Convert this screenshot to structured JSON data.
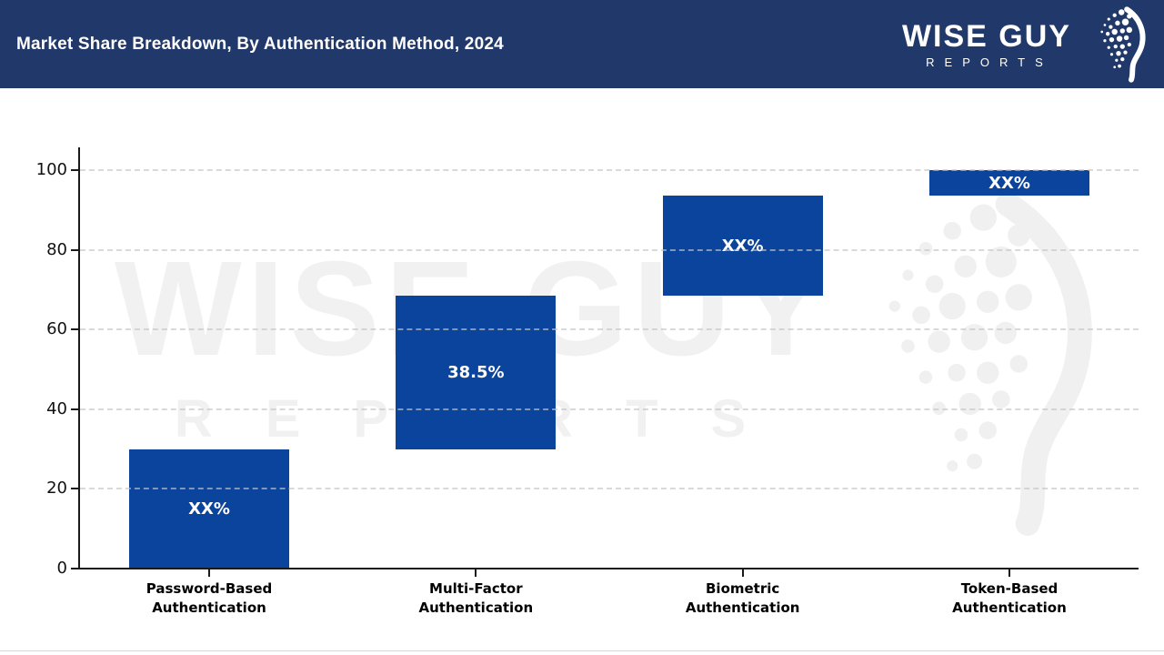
{
  "header": {
    "title": "Market Share Breakdown, By Authentication Method, 2024",
    "logo": {
      "line1": "WISE GUY",
      "line2": "REPORTS"
    }
  },
  "watermark": {
    "line1": "WISE GUY",
    "line2": "REPORTS"
  },
  "chart_data": {
    "type": "bar",
    "subtype": "waterfall-style floating bars",
    "title": "Market Share Breakdown, By Authentication Method, 2024",
    "categories": [
      [
        "Password-Based",
        "Authentication"
      ],
      [
        "Multi-Factor",
        "Authentication"
      ],
      [
        "Biometric",
        "Authentication"
      ],
      [
        "Token-Based",
        "Authentication"
      ]
    ],
    "bars": [
      {
        "label": "XX%",
        "start": 0,
        "end": 30
      },
      {
        "label": "38.5%",
        "start": 30,
        "end": 68.5
      },
      {
        "label": "XX%",
        "start": 68.5,
        "end": 93.5
      },
      {
        "label": "XX%",
        "start": 93.5,
        "end": 100
      }
    ],
    "ylim": [
      0,
      100
    ],
    "yticks": [
      0,
      20,
      40,
      60,
      80,
      100
    ],
    "grid": "horizontal dashed",
    "legend": "none",
    "colors": {
      "bar": "#0b449c",
      "bar_label": "#ffffff",
      "axis": "#1a1a1a",
      "grid": "#c5c5c5",
      "header_bg": "#21396a",
      "watermark": "#f1f1f1"
    }
  }
}
